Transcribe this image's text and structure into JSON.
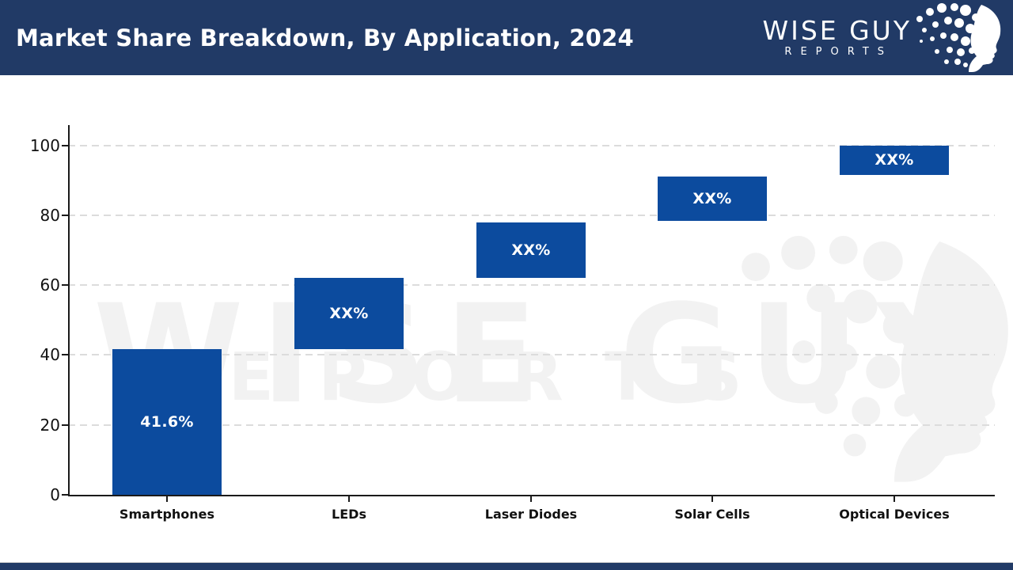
{
  "header": {
    "title": "Market Share Breakdown, By Application, 2024",
    "logo": {
      "line1": "WISE GUY",
      "line2": "REPORTS"
    }
  },
  "watermark": {
    "line1": "WISE GUY",
    "line2": "REPORTS"
  },
  "chart_data": {
    "type": "bar",
    "variant": "waterfall",
    "title": "Market Share Breakdown, By Application, 2024",
    "categories": [
      "Smartphones",
      "LEDs",
      "Laser Diodes",
      "Solar Cells",
      "Optical Devices"
    ],
    "segments": [
      {
        "category": "Smartphones",
        "start": 0,
        "end": 41.6,
        "label": "41.6%"
      },
      {
        "category": "LEDs",
        "start": 41.6,
        "end": 62.0,
        "label": "XX%"
      },
      {
        "category": "Laser Diodes",
        "start": 62.0,
        "end": 78.0,
        "label": "XX%"
      },
      {
        "category": "Solar Cells",
        "start": 78.4,
        "end": 91.2,
        "label": "XX%"
      },
      {
        "category": "Optical Devices",
        "start": 91.6,
        "end": 100.0,
        "label": "XX%"
      }
    ],
    "yticks": [
      0,
      20,
      40,
      60,
      80,
      100
    ],
    "ylim": [
      0,
      105
    ],
    "xlabel": "",
    "ylabel": "",
    "grid": "dashed-horizontal",
    "legend": "none",
    "bar_color": "#0c4b9e",
    "label_color": "#ffffff"
  },
  "colors": {
    "header_bg": "#213a66",
    "footer_bg": "#213a66",
    "bar": "#0c4b9e",
    "gridline": "#dcdcdc",
    "watermark": "#f2f2f2"
  }
}
